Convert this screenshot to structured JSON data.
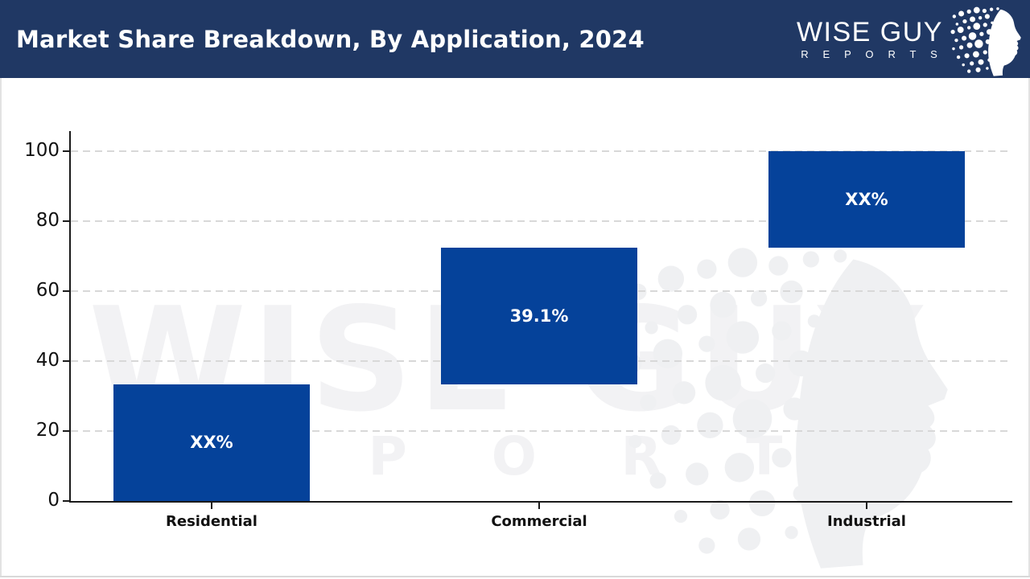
{
  "header": {
    "title": "Market Share Breakdown, By Application, 2024",
    "brand_name": "WISE GUY",
    "brand_sub": "R E P O R T S",
    "bg_color": "#203864"
  },
  "watermark": {
    "line1": "WISE GUY",
    "line2": "R E P O R T S"
  },
  "chart_data": {
    "type": "bar",
    "subtype": "floating-cumulative-bars",
    "title": "Market Share Breakdown, By Application, 2024",
    "categories": [
      "Residential",
      "Commercial",
      "Industrial"
    ],
    "bars": [
      {
        "category": "Residential",
        "start": 0,
        "end": 33.4,
        "label": "XX%"
      },
      {
        "category": "Commercial",
        "start": 33.4,
        "end": 72.5,
        "label": "39.1%"
      },
      {
        "category": "Industrial",
        "start": 72.5,
        "end": 100,
        "label": "XX%"
      }
    ],
    "xlabel": "",
    "ylabel": "",
    "ylim": [
      0,
      100
    ],
    "yticks": [
      0,
      20,
      40,
      60,
      80,
      100
    ],
    "grid": "horizontal-dashed",
    "legend_position": "none",
    "bar_color": "#05429A",
    "grid_color": "#d8d8d8",
    "axis_color": "#1a1a1a",
    "tick_text_color": "#111111",
    "bar_label_color": "#ffffff"
  }
}
